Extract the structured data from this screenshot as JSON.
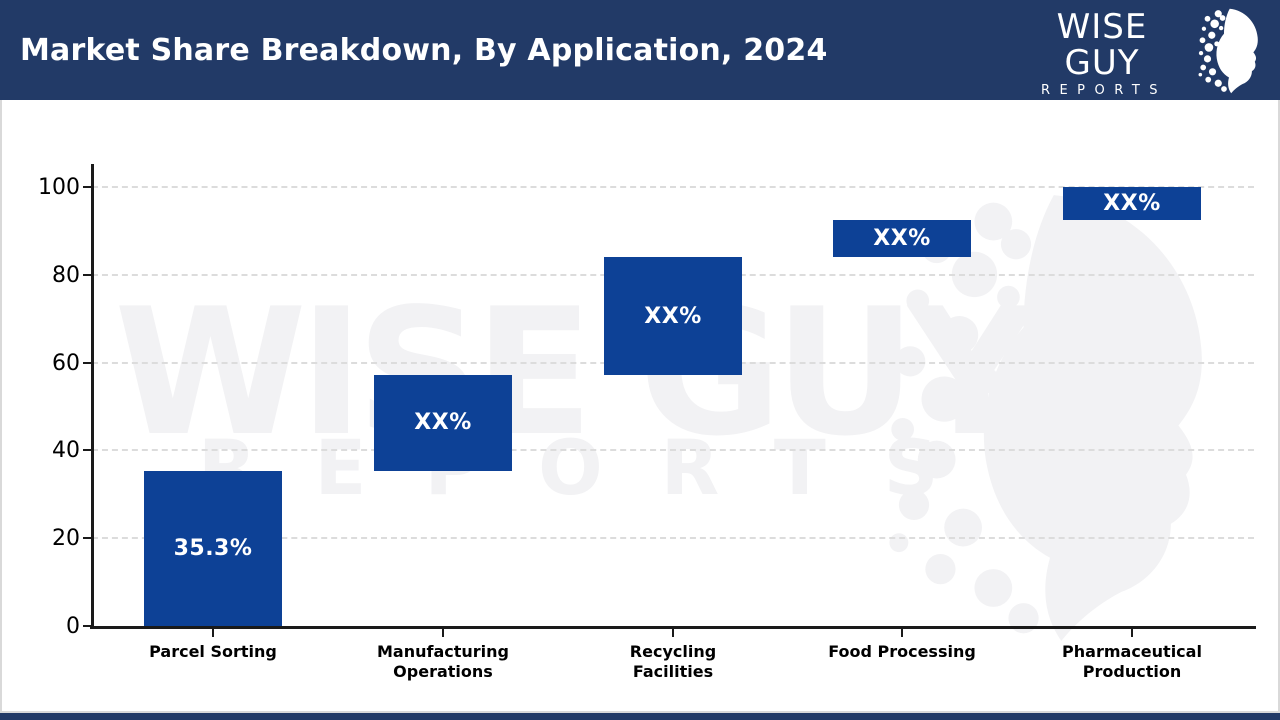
{
  "header": {
    "title": "Market Share Breakdown, By Application, 2024"
  },
  "logo": {
    "line1": "WISE GUY",
    "line2": "REPORTS"
  },
  "watermark": {
    "line1": "WISE GUY",
    "line2": "REPORTS"
  },
  "colors": {
    "header_bg": "#223a67",
    "footer_bg": "#223a67",
    "bar": "#0d4196",
    "bar_label": "#ffffff",
    "grid": "#dcdcdc",
    "axis": "#1a1a1a",
    "watermark": "#f2f2f4",
    "title_text": "#ffffff"
  },
  "chart_data": {
    "type": "bar",
    "subtype": "floating-waterfall",
    "title": "Market Share Breakdown, By Application, 2024",
    "categories": [
      "Parcel Sorting",
      "Manufacturing Operations",
      "Recycling Facilities",
      "Food Processing",
      "Pharmaceutical Production"
    ],
    "category_label_lines": [
      [
        "Parcel Sorting"
      ],
      [
        "Manufacturing",
        "Operations"
      ],
      [
        "Recycling",
        "Facilities"
      ],
      [
        "Food Processing"
      ],
      [
        "Pharmaceutical",
        "Production"
      ]
    ],
    "segments": [
      {
        "category": "Parcel Sorting",
        "start": 0,
        "end": 35.3,
        "label": "35.3%"
      },
      {
        "category": "Manufacturing Operations",
        "start": 35.3,
        "end": 57.2,
        "label": "XX%"
      },
      {
        "category": "Recycling Facilities",
        "start": 57.2,
        "end": 84.0,
        "label": "XX%"
      },
      {
        "category": "Food Processing",
        "start": 84.0,
        "end": 92.5,
        "label": "XX%"
      },
      {
        "category": "Pharmaceutical Production",
        "start": 92.5,
        "end": 100.0,
        "label": "XX%"
      }
    ],
    "yticks": [
      0,
      20,
      40,
      60,
      80,
      100
    ],
    "ylim": [
      0,
      105
    ],
    "xlabel": "",
    "ylabel": "",
    "grid": "horizontal-dashed",
    "legend": "none",
    "bar_value_label_position": "center"
  }
}
